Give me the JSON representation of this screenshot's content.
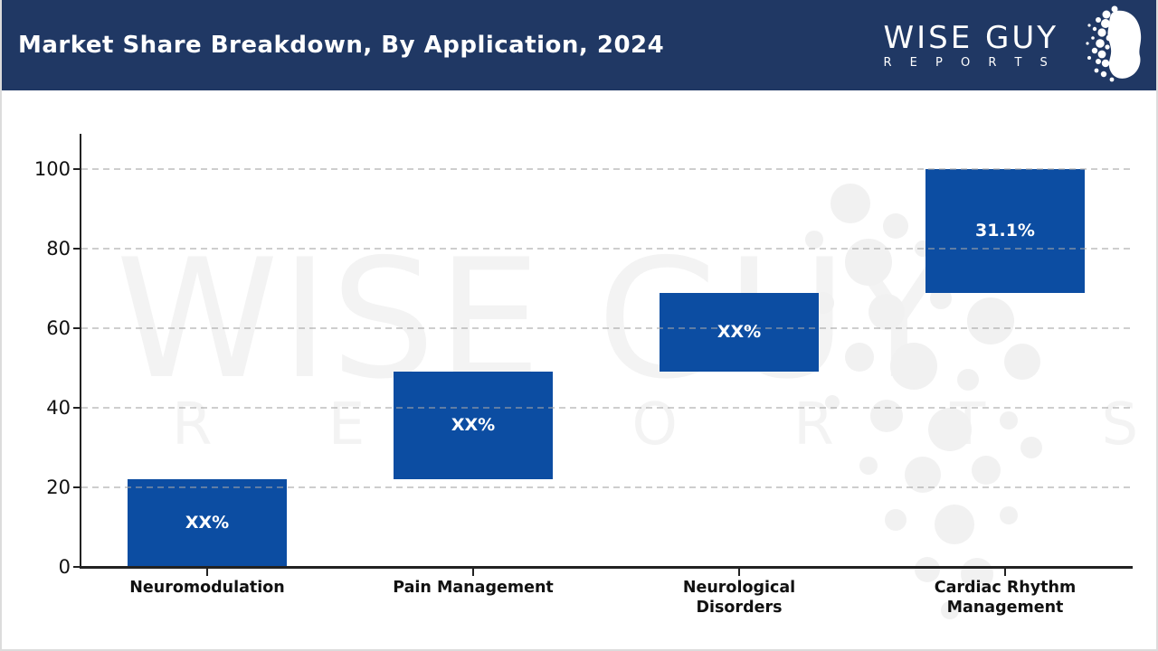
{
  "header": {
    "title": "Market Share Breakdown, By Application, 2024",
    "logo": {
      "line1": "WISE GUY",
      "line2": "R E P O R T S"
    }
  },
  "watermark": {
    "line1": "WISE GUY",
    "line2": "R E P O R T S"
  },
  "chart_data": {
    "type": "bar",
    "subtype": "floating-waterfall",
    "title": "Market Share Breakdown, By Application, 2024",
    "xlabel": "",
    "ylabel": "",
    "categories": [
      "Neuromodulation",
      "Pain Management",
      "Neurological\nDisorders",
      "Cardiac Rhythm\nManagement"
    ],
    "segments": [
      {
        "category": "Neuromodulation",
        "start": 0,
        "end": 22.1,
        "label": "XX%"
      },
      {
        "category": "Pain Management",
        "start": 22.1,
        "end": 49.1,
        "label": "XX%"
      },
      {
        "category": "Neurological Disorders",
        "start": 49.1,
        "end": 68.9,
        "label": "XX%"
      },
      {
        "category": "Cardiac Rhythm Management",
        "start": 68.9,
        "end": 100,
        "label": "31.1%"
      }
    ],
    "yticks": [
      0,
      20,
      40,
      60,
      80,
      100
    ],
    "ylim": [
      0,
      105
    ],
    "grid": "dashed-horizontal-above-bars",
    "legend": "none",
    "colors": {
      "bar": "#0c4da2",
      "header_bg": "#203864",
      "axis": "#1a1a1a",
      "grid": "#c8c8c8",
      "bar_label": "#ffffff",
      "tick_label": "#111111",
      "watermark": "#f2f2f2"
    }
  }
}
